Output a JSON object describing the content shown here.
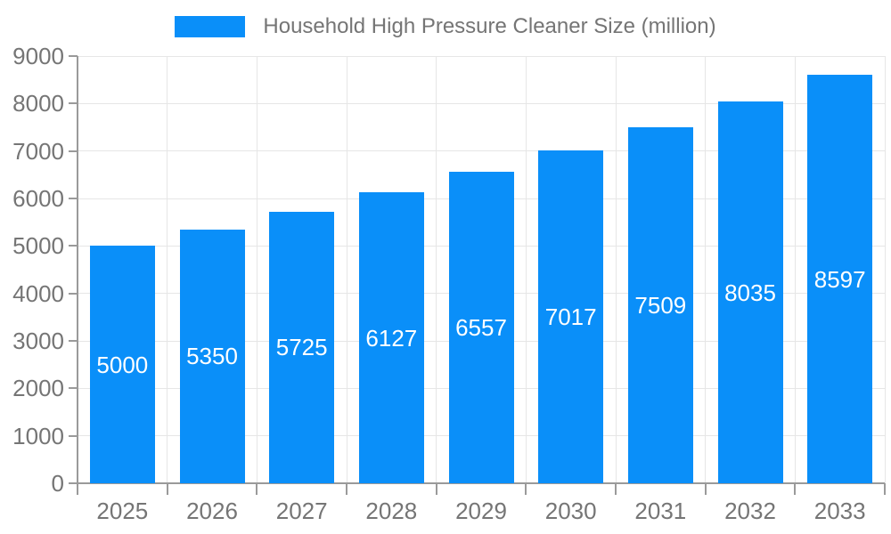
{
  "legend": {
    "label": "Household High Pressure Cleaner Size (million)",
    "swatch_color": "#0a8ff9"
  },
  "chart_data": {
    "type": "bar",
    "title": "Household High Pressure Cleaner Size (million)",
    "categories": [
      "2025",
      "2026",
      "2027",
      "2028",
      "2029",
      "2030",
      "2031",
      "2032",
      "2033"
    ],
    "series": [
      {
        "name": "Household High Pressure Cleaner Size (million)",
        "color": "#0a8ff9",
        "values": [
          5000,
          5350,
          5725,
          6127,
          6557,
          7017,
          7509,
          8035,
          8597
        ]
      }
    ],
    "value_labels": [
      "5000",
      "5350",
      "5725",
      "6127",
      "6557",
      "7017",
      "7509",
      "8035",
      "8597"
    ],
    "value_label_position": "inside-middle",
    "xlabel": "",
    "ylabel": "",
    "ylim": [
      0,
      9000
    ],
    "ytick_step": 1000,
    "yticks": [
      "0",
      "1000",
      "2000",
      "3000",
      "4000",
      "5000",
      "6000",
      "7000",
      "8000",
      "9000"
    ],
    "grid": true,
    "legend_position": "top-center",
    "colors": {
      "bar": "#0a8ff9",
      "axis_line": "#9a9a9a",
      "grid_line": "#e6e6e6",
      "tick_text": "#757575",
      "value_label_text": "#ffffff",
      "background": "#ffffff"
    }
  }
}
